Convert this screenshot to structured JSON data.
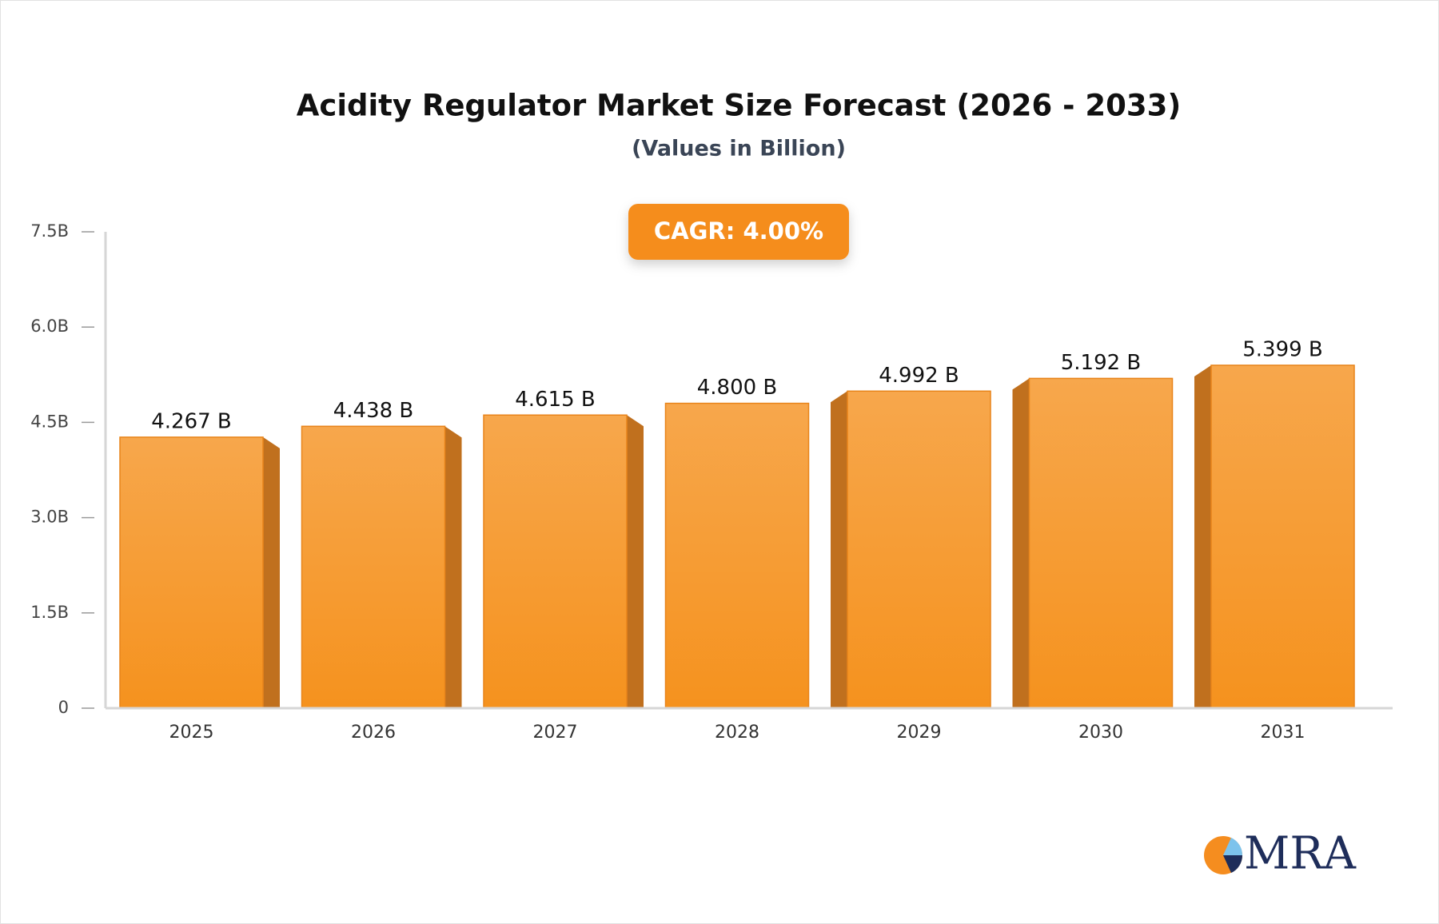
{
  "chart_data": {
    "type": "bar",
    "title": "Acidity Regulator Market Size Forecast (2026 - 2033)",
    "subtitle": "(Values in Billion)",
    "annotation": "CAGR: 4.00%",
    "categories": [
      "2025",
      "2026",
      "2027",
      "2028",
      "2029",
      "2030",
      "2031"
    ],
    "values": [
      4.267,
      4.438,
      4.615,
      4.8,
      4.992,
      5.192,
      5.399
    ],
    "value_labels": [
      "4.267 B",
      "4.438 B",
      "4.615 B",
      "4.800 B",
      "4.992 B",
      "5.192 B",
      "5.399 B"
    ],
    "color": "#f7a040",
    "ylim": [
      0,
      7.5
    ],
    "yticks": [
      0,
      {
        "value": 1.5,
        "label": "1.5B"
      },
      {
        "value": 3,
        "label": "3.0B"
      },
      {
        "value": 4.5,
        "label": "4.5B"
      },
      {
        "value": 6,
        "label": "6.0B"
      },
      {
        "value": 7.5,
        "label": "7.5B"
      }
    ],
    "grid": false
  },
  "logo": "MRA"
}
